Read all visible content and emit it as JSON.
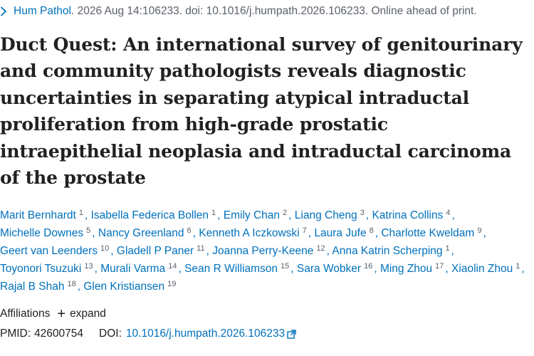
{
  "citation": {
    "journal": "Hum Pathol",
    "details": "2026 Aug 14:106233. doi: 10.1016/j.humpath.2026.106233. Online ahead of print."
  },
  "title": "Duct Quest: An international survey of genitourinary and community pathologists reveals diagnostic uncertainties in separating atypical intraductal proliferation from high-grade prostatic intraepithelial neoplasia and intraductal carcinoma of the prostate",
  "authors": [
    {
      "name": "Marit Bernhardt",
      "aff": "1"
    },
    {
      "name": "Isabella Federica Bollen",
      "aff": "1"
    },
    {
      "name": "Emily Chan",
      "aff": "2"
    },
    {
      "name": "Liang Cheng",
      "aff": "3"
    },
    {
      "name": "Katrina Collins",
      "aff": "4"
    },
    {
      "name": "Michelle Downes",
      "aff": "5"
    },
    {
      "name": "Nancy Greenland",
      "aff": "6"
    },
    {
      "name": "Kenneth A Iczkowski",
      "aff": "7"
    },
    {
      "name": "Laura Jufe",
      "aff": "8"
    },
    {
      "name": "Charlotte Kweldam",
      "aff": "9"
    },
    {
      "name": "Geert van Leenders",
      "aff": "10"
    },
    {
      "name": "Gladell P Paner",
      "aff": "11"
    },
    {
      "name": "Joanna Perry-Keene",
      "aff": "12"
    },
    {
      "name": "Anna Katrin Scherping",
      "aff": "1"
    },
    {
      "name": "Toyonori Tsuzuki",
      "aff": "13"
    },
    {
      "name": "Murali Varma",
      "aff": "14"
    },
    {
      "name": "Sean R Williamson",
      "aff": "15"
    },
    {
      "name": "Sara Wobker",
      "aff": "16"
    },
    {
      "name": "Ming Zhou",
      "aff": "17"
    },
    {
      "name": "Xiaolin Zhou",
      "aff": "1"
    },
    {
      "name": "Rajal B Shah",
      "aff": "18"
    },
    {
      "name": "Glen Kristiansen",
      "aff": "19"
    }
  ],
  "affiliations": {
    "label": "Affiliations",
    "expand_label": "expand"
  },
  "identifiers": {
    "pmid_label": "PMID:",
    "pmid": "42600754",
    "doi_label": "DOI:",
    "doi": "10.1016/j.humpath.2026.106233"
  },
  "colors": {
    "link": "#0071bc",
    "text": "#212121",
    "muted": "#5b616b"
  },
  "icons": {
    "citation": "chevron-right-icon",
    "expand": "plus-icon",
    "doi_link": "external-link-icon"
  }
}
